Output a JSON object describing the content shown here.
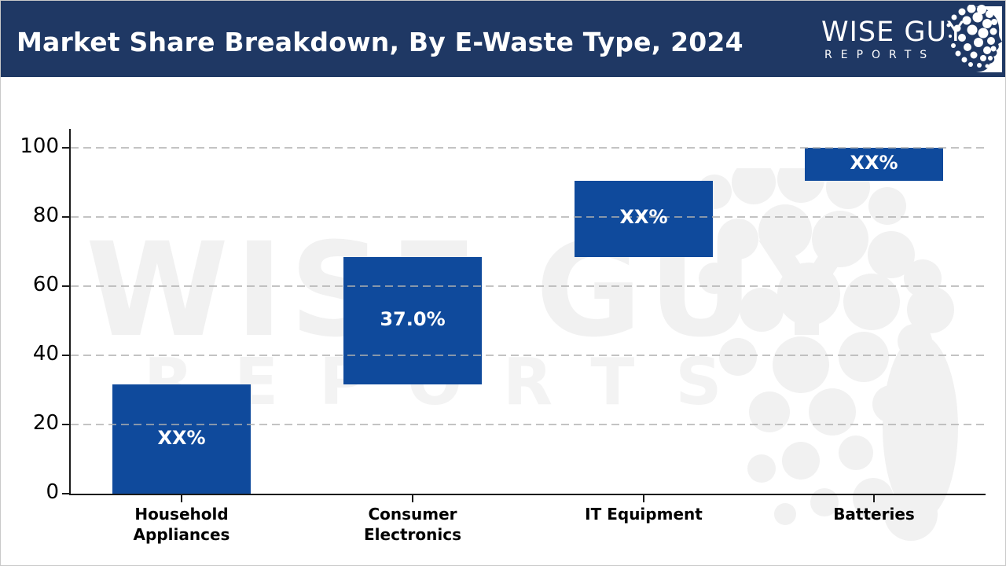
{
  "header": {
    "title": "Market Share Breakdown, By E-Waste Type, 2024",
    "logo": {
      "line1": "WISE GUY",
      "line2": "REPORTS"
    }
  },
  "watermark": {
    "line1": "WISE GUY",
    "line2": "REPORTS"
  },
  "chart_data": {
    "type": "bar",
    "subtype": "waterfall",
    "title": "Market Share Breakdown, By E-Waste Type, 2024",
    "xlabel": "",
    "ylabel": "",
    "ylim": [
      0,
      100
    ],
    "y_ticks": [
      0,
      20,
      40,
      60,
      80,
      100
    ],
    "grid": "horizontal dashed",
    "legend": "none",
    "bar_color": "#0f4a9c",
    "value_label_color": "#ffffff",
    "categories": [
      "Household Appliances",
      "Consumer Electronics",
      "IT Equipment",
      "Batteries"
    ],
    "categories_lines": [
      [
        "Household",
        "Appliances"
      ],
      [
        "Consumer",
        "Electronics"
      ],
      [
        "IT Equipment"
      ],
      [
        "Batteries"
      ]
    ],
    "segments": [
      {
        "label": "Household Appliances",
        "start": 0,
        "end": 31.5,
        "value": 31.5,
        "value_label": "XX%"
      },
      {
        "label": "Consumer Electronics",
        "start": 31.5,
        "end": 68.5,
        "value": 37.0,
        "value_label": "37.0%"
      },
      {
        "label": "IT Equipment",
        "start": 68.5,
        "end": 90.5,
        "value": 22.0,
        "value_label": "XX%"
      },
      {
        "label": "Batteries",
        "start": 90.5,
        "end": 100,
        "value": 9.5,
        "value_label": "XX%"
      }
    ]
  },
  "colors": {
    "header_bg": "#1f3864",
    "bar": "#0f4a9c",
    "grid": "#cfcfcf",
    "axis": "#1a1a1a",
    "page_border": "#c9c9c9",
    "watermark": "#f1f1f1"
  }
}
